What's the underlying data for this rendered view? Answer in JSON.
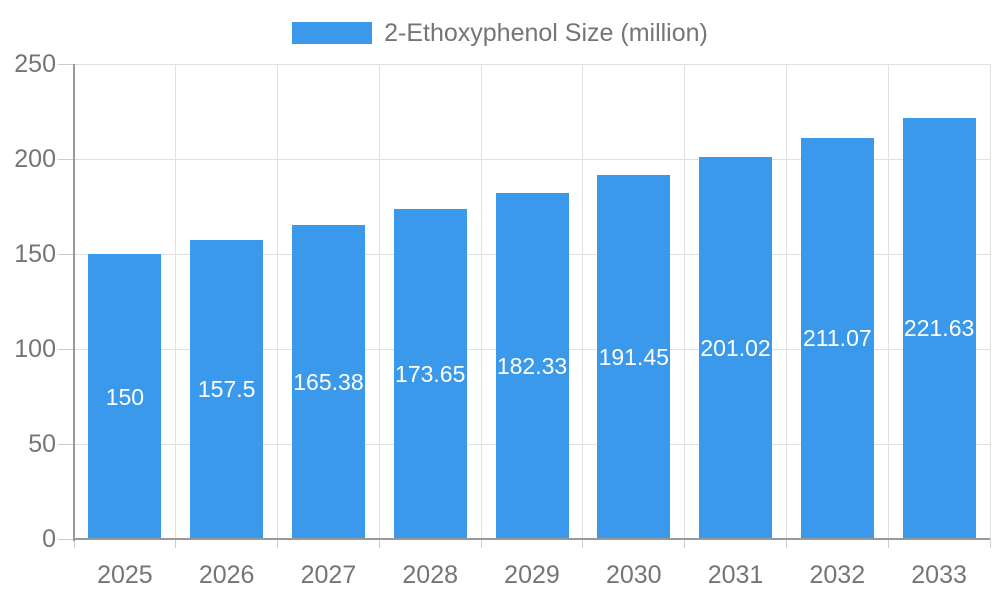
{
  "chart_data": {
    "type": "bar",
    "legend": "2-Ethoxyphenol Size (million)",
    "categories": [
      "2025",
      "2026",
      "2027",
      "2028",
      "2029",
      "2030",
      "2031",
      "2032",
      "2033"
    ],
    "values": [
      150,
      157.5,
      165.38,
      173.65,
      182.33,
      191.45,
      201.02,
      211.07,
      221.63
    ],
    "value_labels": [
      "150",
      "157.5",
      "165.38",
      "173.65",
      "182.33",
      "191.45",
      "201.02",
      "211.07",
      "221.63"
    ],
    "title": "",
    "xlabel": "",
    "ylabel": "",
    "ylim": [
      0,
      250
    ],
    "yticks": [
      0,
      50,
      100,
      150,
      200,
      250
    ],
    "grid": true,
    "legend_position": "top-center",
    "colors": {
      "bar": "#3b99ec",
      "bar_value_text": "#ffffff",
      "axis_text": "#757575",
      "grid_line": "#e0e0e0",
      "axis_line": "#999999",
      "tick_line": "#cccccc",
      "background": "#ffffff"
    }
  }
}
